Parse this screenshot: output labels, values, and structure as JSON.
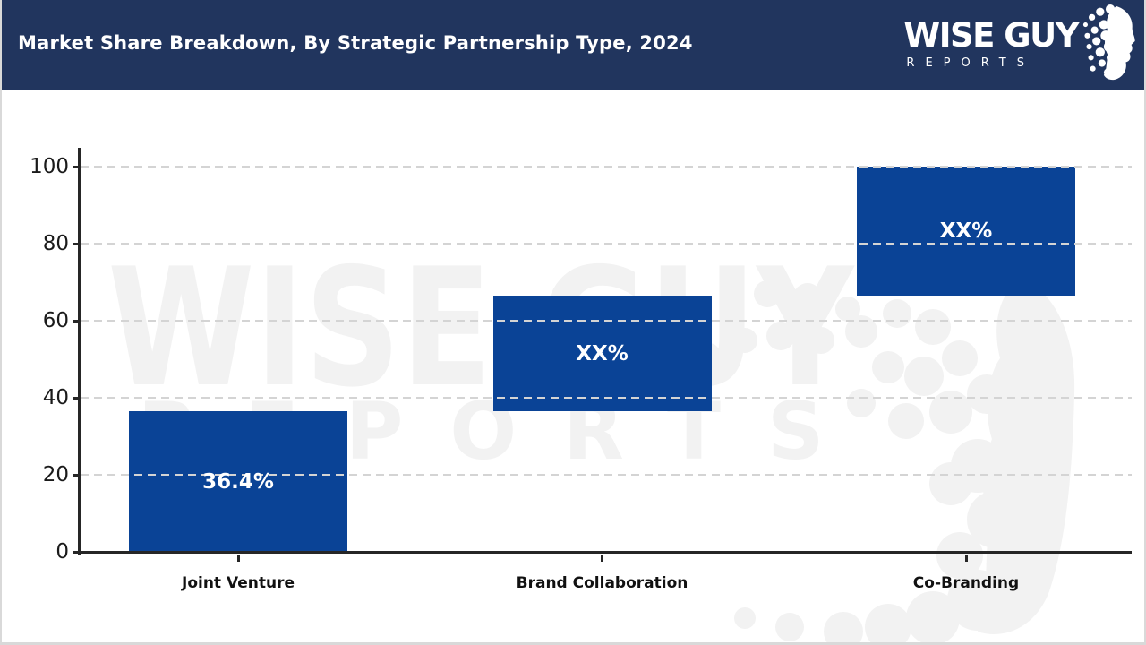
{
  "header": {
    "title": "Market Share Breakdown, By Strategic Partnership Type, 2024",
    "logo": {
      "line1": "WISE GUY",
      "line2": "REPORTS"
    }
  },
  "watermark": {
    "line1": "WISE GUY",
    "line2": "REPORTS"
  },
  "chart_data": {
    "type": "bar",
    "variant": "floating-stacked-percentage",
    "title": "Market Share Breakdown, By Strategic Partnership Type, 2024",
    "xlabel": "",
    "ylabel": "",
    "categories": [
      "Joint Venture",
      "Brand Collaboration",
      "Co-Branding"
    ],
    "bars": [
      {
        "category": "Joint Venture",
        "label": "36.4%",
        "start": 0,
        "end": 36.4
      },
      {
        "category": "Brand Collaboration",
        "label": "XX%",
        "start": 36.4,
        "end": 66.5
      },
      {
        "category": "Co-Branding",
        "label": "XX%",
        "start": 66.5,
        "end": 100
      }
    ],
    "ylim": [
      0,
      100
    ],
    "yticks": [
      0,
      20,
      40,
      60,
      80,
      100
    ],
    "grid": "horizontal-dashed",
    "legend": "none",
    "bar_color": "#0a4396",
    "value_label_color": "#ffffff"
  },
  "colors": {
    "header_bg": "#21355e",
    "bar": "#0a4396",
    "grid": "#d4d4d4",
    "axis": "#262626",
    "tick_text": "#1a1a1a",
    "watermark": "#f2f2f2",
    "page_border": "#d9d9d9"
  }
}
